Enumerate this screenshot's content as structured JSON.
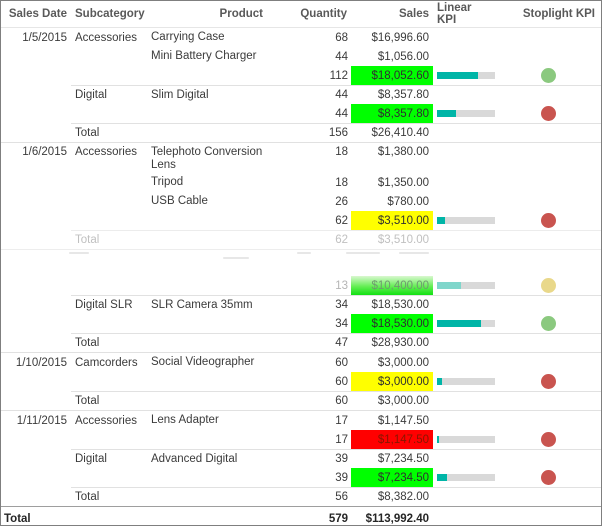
{
  "header": {
    "columns": [
      "Sales Date",
      "Subcategory",
      "Product",
      "Quantity",
      "Sales",
      "Linear KPI",
      "Stoplight KPI"
    ]
  },
  "colors": {
    "kpi_green": "#00ff00",
    "kpi_yellow": "#ffff00",
    "kpi_red": "#ff0000",
    "bar_teal": "#00b5a7",
    "bar_track": "#d9d9d9",
    "dot_green": "#8bc97f",
    "dot_red": "#c9544f",
    "dot_yellow": "#e9d88a"
  },
  "table": {
    "rows": [
      {
        "type": "detail",
        "line": "none",
        "date": "1/5/2015",
        "subcategory": "Accessories",
        "product": "Carrying Case",
        "quantity": "68",
        "sales": "$16,996.60"
      },
      {
        "type": "detail",
        "line": "none",
        "product": "Mini Battery Charger",
        "quantity": "44",
        "sales": "$1,056.00"
      },
      {
        "type": "subtotal",
        "line": "none",
        "quantity": "112",
        "sales": "$18,052.60",
        "sales_bg": "green",
        "bar": 70,
        "light": "green"
      },
      {
        "type": "detail",
        "line": "indent",
        "subcategory": "Digital",
        "product": "Slim Digital",
        "quantity": "44",
        "sales": "$8,357.80"
      },
      {
        "type": "subtotal",
        "line": "none",
        "quantity": "44",
        "sales": "$8,357.80",
        "sales_bg": "green",
        "bar": 33,
        "light": "red"
      },
      {
        "type": "total",
        "line": "indent",
        "subcategory": "Total",
        "quantity": "156",
        "sales": "$26,410.40"
      },
      {
        "type": "detail",
        "line": "full",
        "tall": true,
        "date": "1/6/2015",
        "subcategory": "Accessories",
        "product": "Telephoto Conversion Lens",
        "quantity": "18",
        "sales": "$1,380.00"
      },
      {
        "type": "detail",
        "line": "none",
        "product": "Tripod",
        "quantity": "18",
        "sales": "$1,350.00"
      },
      {
        "type": "detail",
        "line": "none",
        "product": "USB Cable",
        "quantity": "26",
        "sales": "$780.00"
      },
      {
        "type": "subtotal",
        "line": "none",
        "quantity": "62",
        "sales": "$3,510.00",
        "sales_bg": "yellow",
        "bar": 13,
        "light": "red"
      },
      {
        "type": "total",
        "line": "indent",
        "faded": true,
        "subcategory": "Total",
        "quantity": "62",
        "sales": "$3,510.00"
      },
      {
        "type": "ghost",
        "line": "full-faded"
      },
      {
        "type": "subtotal",
        "line": "none",
        "faded_qty": true,
        "quantity": "13",
        "sales": "$10,400.00",
        "sales_bg": "green-fade",
        "bar": 42,
        "bar_faded": true,
        "light": "yellow"
      },
      {
        "type": "detail",
        "line": "indent",
        "subcategory": "Digital SLR",
        "product": "SLR Camera 35mm",
        "quantity": "34",
        "sales": "$18,530.00"
      },
      {
        "type": "subtotal",
        "line": "none",
        "quantity": "34",
        "sales": "$18,530.00",
        "sales_bg": "green",
        "bar": 75,
        "light": "green"
      },
      {
        "type": "total",
        "line": "indent",
        "subcategory": "Total",
        "quantity": "47",
        "sales": "$28,930.00"
      },
      {
        "type": "detail",
        "line": "full",
        "date": "1/10/2015",
        "subcategory": "Camcorders",
        "product": "Social Videographer",
        "quantity": "60",
        "sales": "$3,000.00"
      },
      {
        "type": "subtotal",
        "line": "none",
        "quantity": "60",
        "sales": "$3,000.00",
        "sales_bg": "yellow",
        "bar": 8,
        "light": "red"
      },
      {
        "type": "total",
        "line": "indent",
        "subcategory": "Total",
        "quantity": "60",
        "sales": "$3,000.00"
      },
      {
        "type": "detail",
        "line": "full",
        "date": "1/11/2015",
        "subcategory": "Accessories",
        "product": "Lens Adapter",
        "quantity": "17",
        "sales": "$1,147.50"
      },
      {
        "type": "subtotal",
        "line": "none",
        "quantity": "17",
        "sales": "$1,147.50",
        "sales_bg": "red",
        "bar": 4,
        "light": "red"
      },
      {
        "type": "detail",
        "line": "indent",
        "subcategory": "Digital",
        "product": "Advanced Digital",
        "quantity": "39",
        "sales": "$7,234.50"
      },
      {
        "type": "subtotal",
        "line": "none",
        "quantity": "39",
        "sales": "$7,234.50",
        "sales_bg": "green",
        "bar": 18,
        "light": "red"
      },
      {
        "type": "total",
        "line": "indent",
        "subcategory": "Total",
        "quantity": "56",
        "sales": "$8,382.00"
      },
      {
        "type": "grand",
        "line": "grand",
        "label": "Total",
        "quantity": "579",
        "sales": "$113,992.40"
      }
    ]
  }
}
